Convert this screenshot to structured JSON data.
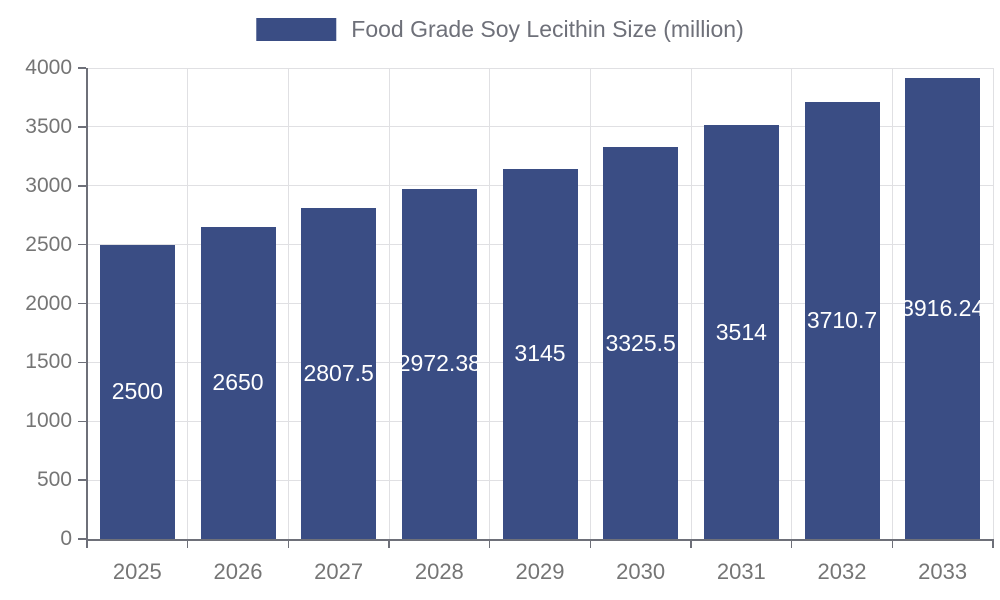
{
  "legend": {
    "label": "Food Grade Soy Lecithin Size (million)"
  },
  "chart_data": {
    "type": "bar",
    "title": "Food Grade Soy Lecithin Size (million)",
    "categories": [
      "2025",
      "2026",
      "2027",
      "2028",
      "2029",
      "2030",
      "2031",
      "2032",
      "2033"
    ],
    "values": [
      2500,
      2650,
      2807.5,
      2972.38,
      3145,
      3325.5,
      3514,
      3710.7,
      3916.24
    ],
    "bar_labels": [
      "2500",
      "2650",
      "2807.5",
      "2972.38",
      "3145",
      "3325.5",
      "3514",
      "3710.7",
      "3916.24"
    ],
    "series_name": "Food Grade Soy Lecithin Size (million)",
    "xlabel": "",
    "ylabel": "",
    "ylim": [
      0,
      4000
    ],
    "ytick_step": 500,
    "ytick_labels": [
      "0",
      "500",
      "1000",
      "1500",
      "2000",
      "2500",
      "3000",
      "3500",
      "4000"
    ],
    "grid": true,
    "legend_position": "top-center",
    "colors": {
      "bar": "#3a4d84",
      "axis": "#6e7079",
      "grid": "#e0e0e3",
      "tick_label": "#757575",
      "value_label": "#ffffff",
      "legend_text": "#6e7079",
      "background": "#ffffff"
    }
  }
}
